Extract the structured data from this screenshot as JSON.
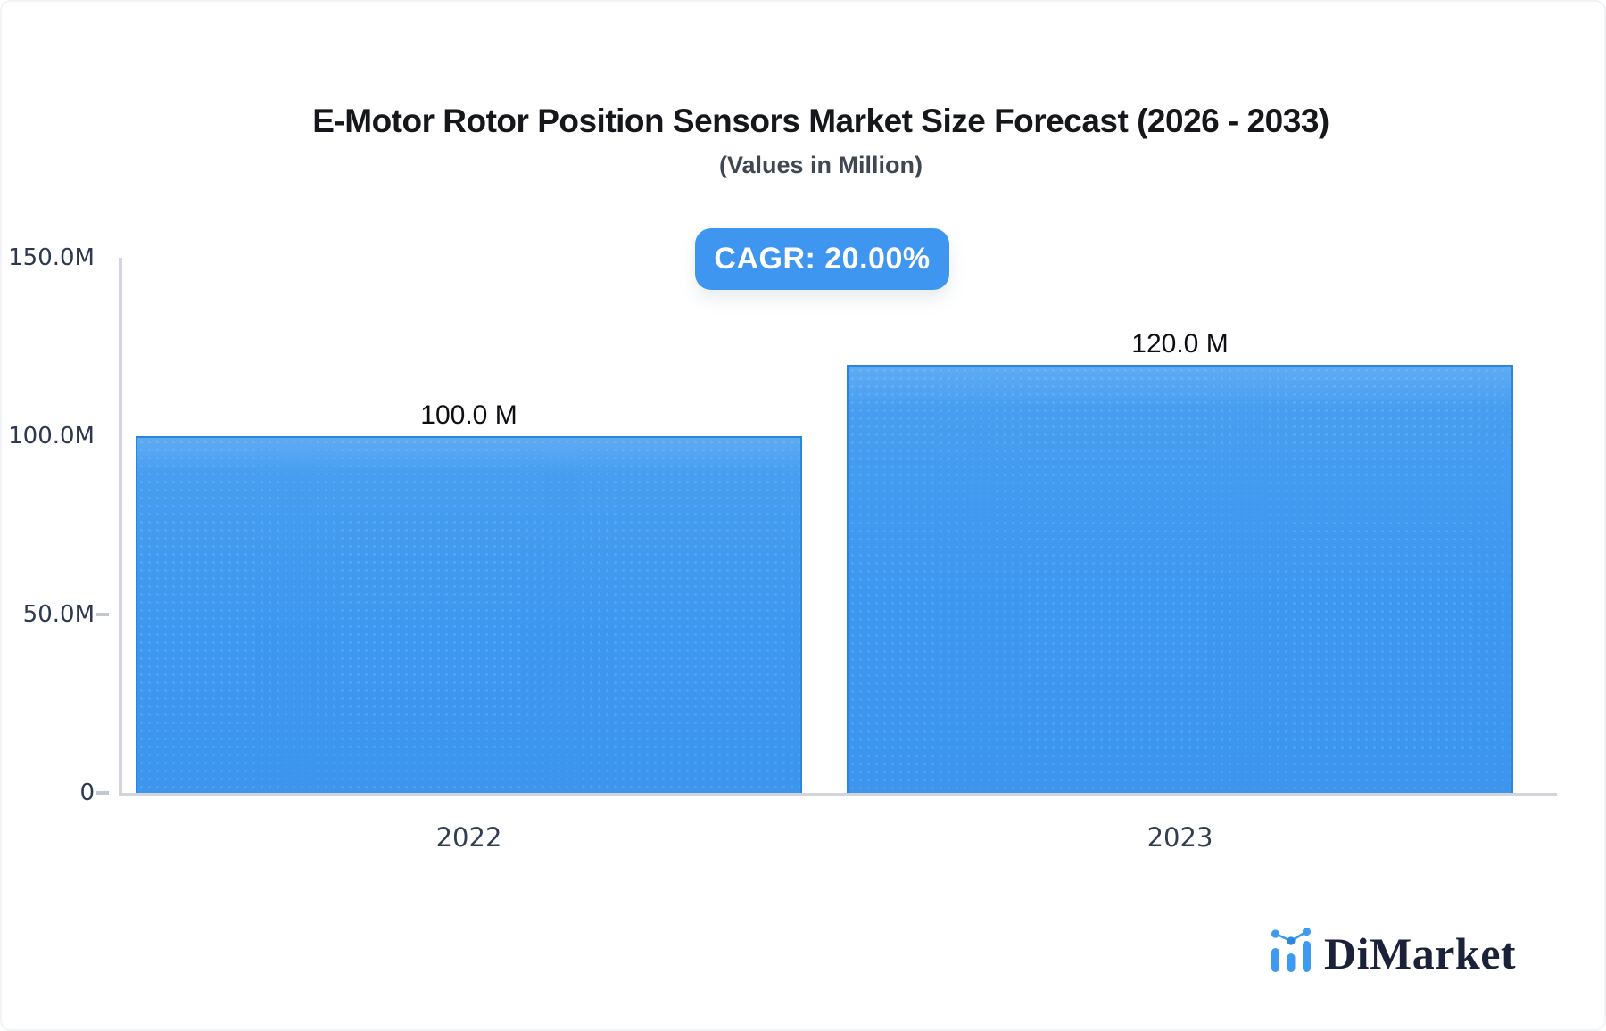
{
  "header": {
    "title": "E-Motor Rotor Position Sensors Market Size Forecast (2026 - 2033)",
    "subtitle": "(Values in Million)"
  },
  "badge": {
    "label": "CAGR: 20.00%"
  },
  "chart_data": {
    "type": "bar",
    "title": "E-Motor Rotor Position Sensors Market Size Forecast (2026 - 2033)",
    "subtitle": "(Values in Million)",
    "unit": "Million",
    "cagr_percent": "20.00%",
    "categories": [
      "2022",
      "2023"
    ],
    "values": [
      100.0,
      120.0
    ],
    "value_labels": [
      "100.0 M",
      "120.0 M"
    ],
    "ylim": [
      0,
      150
    ],
    "yticks": [
      {
        "label": "150.0M",
        "value": 150,
        "dash": false
      },
      {
        "label": "100.0M",
        "value": 100,
        "dash": false
      },
      {
        "label": "50.0M",
        "value": 50,
        "dash": true
      },
      {
        "label": "0",
        "value": 0,
        "dash": true
      }
    ],
    "grid": false,
    "legend": "none",
    "bar_color": "#3e97ef",
    "bar_border_color": "#2b85db",
    "axis_color": "#d2d6db",
    "label_color": "#2e3850"
  },
  "logo": {
    "text": "DiMarket",
    "icon": "bar-line-chart-icon",
    "accent_color": "#3d9af0",
    "text_color": "#1b2138"
  }
}
